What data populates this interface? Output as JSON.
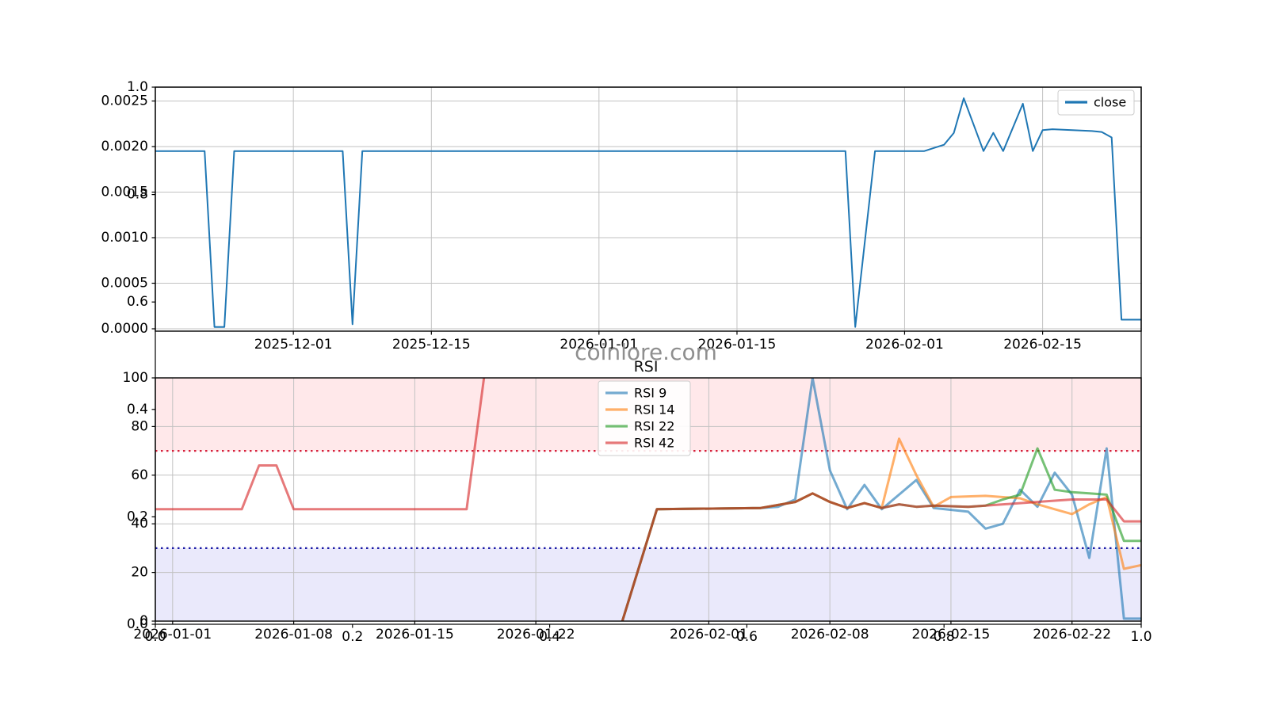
{
  "watermark": "coinlore.com",
  "chart_data": [
    {
      "id": "price-panel",
      "type": "line",
      "title": "",
      "xlabel": "",
      "ylabel": "",
      "grid": true,
      "xlim": [
        "2025-11-17",
        "2026-02-25"
      ],
      "ylim": [
        -2.6e-05,
        0.002652
      ],
      "legend": {
        "position": "upper right",
        "items": [
          {
            "label": "close",
            "color": "#1f77b4"
          }
        ]
      },
      "yticks": [
        {
          "v": 0.0,
          "label": "0.0000"
        },
        {
          "v": 0.0005,
          "label": "0.0005"
        },
        {
          "v": 0.001,
          "label": "0.0010"
        },
        {
          "v": 0.0015,
          "label": "0.0015"
        },
        {
          "v": 0.002,
          "label": "0.0020"
        },
        {
          "v": 0.0025,
          "label": "0.0025"
        }
      ],
      "xticks": [
        {
          "date": "2025-12-01",
          "label": "2025-12-01"
        },
        {
          "date": "2025-12-15",
          "label": "2025-12-15"
        },
        {
          "date": "2026-01-01",
          "label": "2026-01-01"
        },
        {
          "date": "2026-01-15",
          "label": "2026-01-15"
        },
        {
          "date": "2026-02-01",
          "label": "2026-02-01"
        },
        {
          "date": "2026-02-15",
          "label": "2026-02-15"
        }
      ],
      "series": [
        {
          "name": "close",
          "color": "#1f77b4",
          "width": 2,
          "segments": [
            [
              [
                "2025-11-17",
                0.00195
              ],
              [
                "2025-11-22",
                0.00195
              ],
              [
                "2025-11-23",
                2e-05
              ],
              [
                "2025-11-24",
                2e-05
              ],
              [
                "2025-11-25",
                0.00195
              ],
              [
                "2025-12-06",
                0.00195
              ],
              [
                "2025-12-07",
                5e-05
              ],
              [
                "2025-12-08",
                0.00195
              ],
              [
                "2026-01-26",
                0.00195
              ],
              [
                "2026-01-27",
                2e-05
              ],
              [
                "2026-01-29",
                0.00195
              ],
              [
                "2026-02-03",
                0.00195
              ],
              [
                "2026-02-05",
                0.00202
              ],
              [
                "2026-02-06",
                0.00215
              ],
              [
                "2026-02-07",
                0.00253
              ],
              [
                "2026-02-09",
                0.00195
              ],
              [
                "2026-02-10",
                0.00215
              ],
              [
                "2026-02-11",
                0.00195
              ],
              [
                "2026-02-13",
                0.00247
              ],
              [
                "2026-02-14",
                0.00195
              ],
              [
                "2026-02-15",
                0.00218
              ],
              [
                "2026-02-16",
                0.00219
              ],
              [
                "2026-02-18",
                0.00218
              ],
              [
                "2026-02-20",
                0.00217
              ],
              [
                "2026-02-21",
                0.00216
              ],
              [
                "2026-02-22",
                0.0021
              ],
              [
                "2026-02-23",
                0.0001
              ],
              [
                "2026-02-25",
                0.0001
              ]
            ]
          ]
        }
      ]
    },
    {
      "id": "rsi-panel",
      "type": "line",
      "title": "RSI",
      "xlabel": "",
      "ylabel": "",
      "grid": true,
      "xlim": [
        "2025-12-31",
        "2026-02-26"
      ],
      "ylim": [
        0,
        100
      ],
      "legend": {
        "position": "upper center",
        "items": [
          {
            "label": "RSI 9",
            "color": "rgba(31,119,180,0.62)"
          },
          {
            "label": "RSI 14",
            "color": "rgba(255,127,14,0.62)"
          },
          {
            "label": "RSI 22",
            "color": "rgba(44,160,44,0.65)"
          },
          {
            "label": "RSI 42",
            "color": "rgba(214,39,40,0.62)"
          }
        ]
      },
      "bands": [
        {
          "from": 70,
          "to": 100,
          "color": "rgba(255,30,45,0.10)"
        },
        {
          "from": 0,
          "to": 30,
          "color": "rgba(85,70,220,0.12)"
        }
      ],
      "hlines": [
        {
          "y": 70,
          "color": "#d6203a",
          "style": "dotted"
        },
        {
          "y": 30,
          "color": "#1a1aa6",
          "style": "dotted"
        }
      ],
      "yticks": [
        {
          "v": 0,
          "label": "0"
        },
        {
          "v": 20,
          "label": "20"
        },
        {
          "v": 40,
          "label": "40"
        },
        {
          "v": 60,
          "label": "60"
        },
        {
          "v": 80,
          "label": "80"
        },
        {
          "v": 100,
          "label": "100"
        }
      ],
      "xticks": [
        {
          "date": "2026-01-01",
          "label": "2026-01-01"
        },
        {
          "date": "2026-01-08",
          "label": "2026-01-08"
        },
        {
          "date": "2026-01-15",
          "label": "2026-01-15"
        },
        {
          "date": "2026-01-22",
          "label": "2026-01-22"
        },
        {
          "date": "2026-02-01",
          "label": "2026-02-01"
        },
        {
          "date": "2026-02-08",
          "label": "2026-02-08"
        },
        {
          "date": "2026-02-15",
          "label": "2026-02-15"
        },
        {
          "date": "2026-02-22",
          "label": "2026-02-22"
        }
      ],
      "series": [
        {
          "name": "RSI 9",
          "color": "rgba(31,119,180,0.62)",
          "width": 3,
          "segments": [
            [
              [
                "2026-01-27",
                0
              ],
              [
                "2026-01-29",
                46
              ],
              [
                "2026-02-04",
                46.5
              ],
              [
                "2026-02-05",
                47
              ],
              [
                "2026-02-06",
                50
              ],
              [
                "2026-02-07",
                100
              ],
              [
                "2026-02-08",
                62
              ],
              [
                "2026-02-09",
                46
              ],
              [
                "2026-02-10",
                56
              ],
              [
                "2026-02-11",
                46
              ],
              [
                "2026-02-13",
                58
              ],
              [
                "2026-02-14",
                46.5
              ],
              [
                "2026-02-16",
                45
              ],
              [
                "2026-02-17",
                38
              ],
              [
                "2026-02-18",
                40
              ],
              [
                "2026-02-19",
                54
              ],
              [
                "2026-02-20",
                47
              ],
              [
                "2026-02-21",
                61
              ],
              [
                "2026-02-22",
                52
              ],
              [
                "2026-02-23",
                26
              ],
              [
                "2026-02-24",
                71
              ],
              [
                "2026-02-25",
                1
              ],
              [
                "2026-02-26",
                1
              ]
            ]
          ]
        },
        {
          "name": "RSI 14",
          "color": "rgba(255,127,14,0.62)",
          "width": 3,
          "segments": [
            [
              [
                "2026-01-27",
                0
              ],
              [
                "2026-01-29",
                46
              ],
              [
                "2026-02-04",
                46.5
              ],
              [
                "2026-02-06",
                49
              ],
              [
                "2026-02-07",
                52.5
              ],
              [
                "2026-02-08",
                49
              ],
              [
                "2026-02-09",
                46.5
              ],
              [
                "2026-02-10",
                48.5
              ],
              [
                "2026-02-11",
                46.5
              ],
              [
                "2026-02-12",
                75
              ],
              [
                "2026-02-13",
                60
              ],
              [
                "2026-02-14",
                47
              ],
              [
                "2026-02-15",
                51
              ],
              [
                "2026-02-17",
                51.5
              ],
              [
                "2026-02-19",
                50.5
              ],
              [
                "2026-02-20",
                48
              ],
              [
                "2026-02-21",
                46
              ],
              [
                "2026-02-22",
                44
              ],
              [
                "2026-02-23",
                48
              ],
              [
                "2026-02-24",
                51
              ],
              [
                "2026-02-25",
                21.5
              ],
              [
                "2026-02-26",
                23
              ]
            ]
          ]
        },
        {
          "name": "RSI 22",
          "color": "rgba(44,160,44,0.65)",
          "width": 3,
          "segments": [
            [
              [
                "2026-01-27",
                0
              ],
              [
                "2026-01-29",
                46
              ],
              [
                "2026-02-04",
                46.5
              ],
              [
                "2026-02-06",
                49
              ],
              [
                "2026-02-07",
                52.5
              ],
              [
                "2026-02-08",
                49
              ],
              [
                "2026-02-09",
                46.5
              ],
              [
                "2026-02-10",
                48.5
              ],
              [
                "2026-02-11",
                46.5
              ],
              [
                "2026-02-12",
                48
              ],
              [
                "2026-02-13",
                47
              ],
              [
                "2026-02-14",
                47.5
              ],
              [
                "2026-02-16",
                47
              ],
              [
                "2026-02-17",
                47.5
              ],
              [
                "2026-02-18",
                50
              ],
              [
                "2026-02-19",
                52
              ],
              [
                "2026-02-20",
                71
              ],
              [
                "2026-02-21",
                54
              ],
              [
                "2026-02-22",
                53
              ],
              [
                "2026-02-23",
                52.5
              ],
              [
                "2026-02-24",
                52
              ],
              [
                "2026-02-25",
                33
              ],
              [
                "2026-02-26",
                33
              ]
            ]
          ]
        },
        {
          "name": "RSI 42",
          "color": "rgba(214,39,40,0.62)",
          "width": 3,
          "segments": [
            [
              [
                "2025-12-31",
                46
              ],
              [
                "2026-01-05",
                46
              ],
              [
                "2026-01-06",
                64
              ],
              [
                "2026-01-07",
                64
              ],
              [
                "2026-01-08",
                46
              ],
              [
                "2026-01-18",
                46
              ],
              [
                "2026-01-19",
                100
              ]
            ],
            [
              [
                "2026-01-27",
                0
              ],
              [
                "2026-01-29",
                46
              ],
              [
                "2026-02-04",
                46.5
              ],
              [
                "2026-02-06",
                49
              ],
              [
                "2026-02-07",
                52.5
              ],
              [
                "2026-02-08",
                49
              ],
              [
                "2026-02-09",
                46.5
              ],
              [
                "2026-02-10",
                48.5
              ],
              [
                "2026-02-11",
                46.5
              ],
              [
                "2026-02-12",
                48
              ],
              [
                "2026-02-13",
                47
              ],
              [
                "2026-02-14",
                47.5
              ],
              [
                "2026-02-16",
                47
              ],
              [
                "2026-02-17",
                47.5
              ],
              [
                "2026-02-19",
                48.5
              ],
              [
                "2026-02-21",
                49.5
              ],
              [
                "2026-02-22",
                50
              ],
              [
                "2026-02-24",
                50
              ],
              [
                "2026-02-25",
                41
              ],
              [
                "2026-02-26",
                41
              ]
            ]
          ]
        }
      ]
    }
  ],
  "overlay_axis": {
    "yticks": [
      {
        "f": 1.0,
        "label": "1.0"
      },
      {
        "f": 0.8,
        "label": "0.8"
      },
      {
        "f": 0.6,
        "label": "0.6"
      },
      {
        "f": 0.4,
        "label": "0.4"
      },
      {
        "f": 0.2,
        "label": "0.2"
      },
      {
        "f": 0.0,
        "label": "0.0"
      }
    ],
    "xticks": [
      {
        "f": 0.0,
        "label": "0.0"
      },
      {
        "f": 0.2,
        "label": "0.2"
      },
      {
        "f": 0.4,
        "label": "0.4"
      },
      {
        "f": 0.6,
        "label": "0.6"
      },
      {
        "f": 0.8,
        "label": "0.8"
      },
      {
        "f": 1.0,
        "label": "1.0"
      }
    ]
  },
  "style": {
    "grid_color": "#c2c2c2",
    "spine_color": "#000000",
    "background": "#ffffff"
  }
}
